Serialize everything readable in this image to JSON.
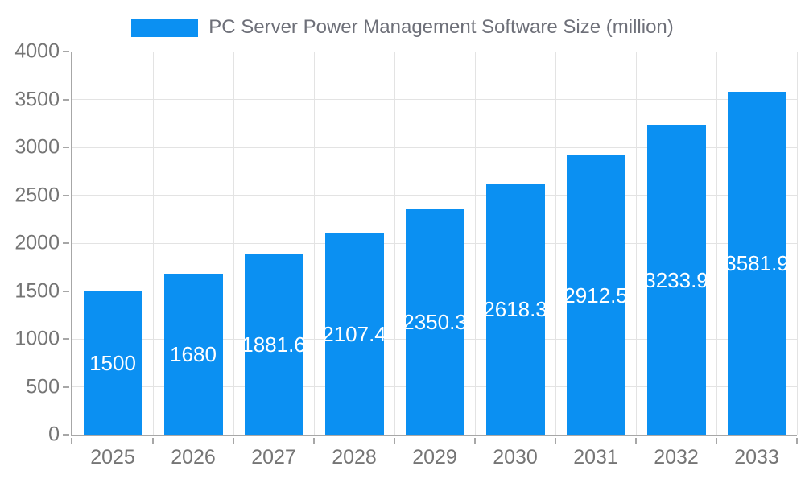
{
  "legend": {
    "label": "PC Server Power Management Software Size (million)"
  },
  "chart_data": {
    "type": "bar",
    "title": "PC Server Power Management Software Size (million)",
    "xlabel": "",
    "ylabel": "",
    "categories": [
      "2025",
      "2026",
      "2027",
      "2028",
      "2029",
      "2030",
      "2031",
      "2032",
      "2033"
    ],
    "values": [
      1500,
      1680,
      1881.6,
      2107.4,
      2350.3,
      2618.3,
      2912.5,
      3233.9,
      3581.9
    ],
    "value_labels": [
      "1500",
      "1680",
      "1881.6",
      "2107.4",
      "2350.3",
      "2618.3",
      "2912.5",
      "3233.9",
      "3581.9"
    ],
    "ylim": [
      0,
      4000
    ],
    "y_ticks": [
      0,
      500,
      1000,
      1500,
      2000,
      2500,
      3000,
      3500,
      4000
    ],
    "grid": true,
    "legend_position": "top",
    "bar_color": "#0b90f2",
    "bar_value_text_color": "#ffffff",
    "axis_text_color": "#757575",
    "grid_color": "#e3e3e3",
    "axis_line_color": "#a7a7a7",
    "background_color": "#ffffff"
  }
}
